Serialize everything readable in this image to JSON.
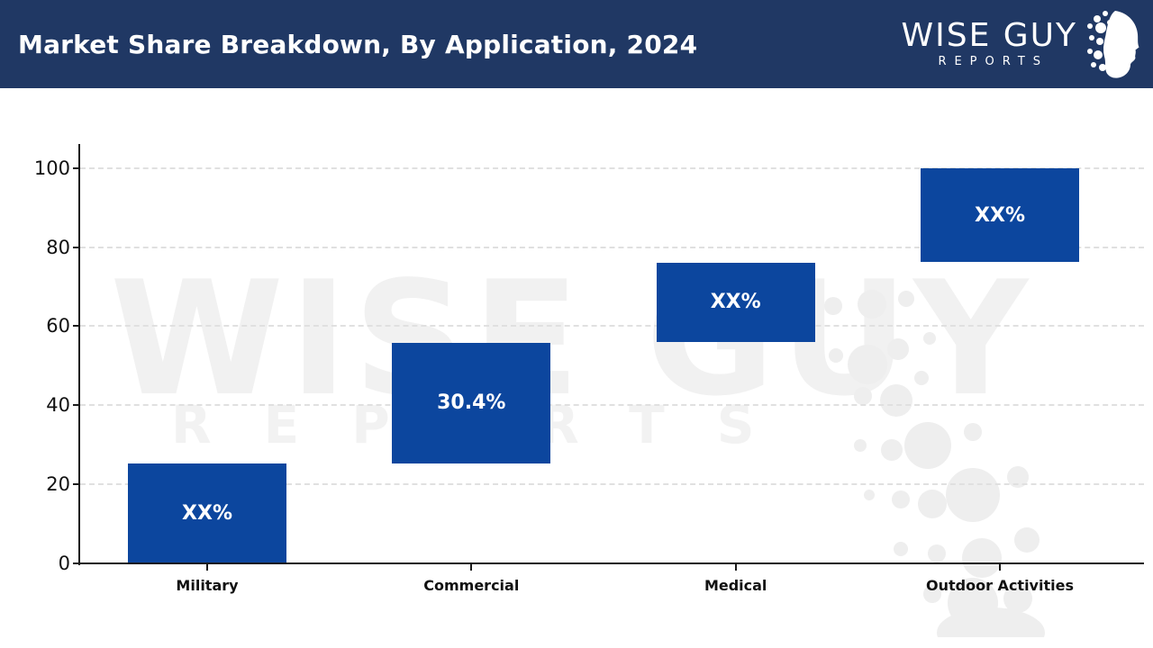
{
  "header": {
    "title": "Market Share Breakdown, By Application, 2024",
    "logo": {
      "line1": "WISE GUY",
      "line2": "REPORTS"
    }
  },
  "watermark": {
    "line1": "WISE GUY",
    "line2": "REPORTS"
  },
  "colors": {
    "header_bg": "#203864",
    "bar": "#0c469e",
    "gridline": "#e0e0e0",
    "watermark": "#f1f1f1",
    "axis": "#1a1a1a",
    "bar_label": "#ffffff"
  },
  "chart_data": {
    "type": "bar",
    "variant": "waterfall",
    "title": "Market Share Breakdown, By Application, 2024",
    "categories": [
      "Military",
      "Commercial",
      "Medical",
      "Outdoor Activities"
    ],
    "bars": [
      {
        "category": "Military",
        "start": 0,
        "end": 25.3,
        "label": "XX%"
      },
      {
        "category": "Commercial",
        "start": 25.3,
        "end": 55.7,
        "label": "30.4%"
      },
      {
        "category": "Medical",
        "start": 56.0,
        "end": 76.1,
        "label": "XX%"
      },
      {
        "category": "Outdoor Activities",
        "start": 76.2,
        "end": 100,
        "label": "XX%"
      }
    ],
    "y_ticks": [
      0,
      20,
      40,
      60,
      80,
      100
    ],
    "ylim": [
      0,
      106
    ],
    "xlabel": "",
    "ylabel": "",
    "grid": "horizontal-dashed",
    "legend": "none",
    "bar_color": "#0c469e"
  }
}
